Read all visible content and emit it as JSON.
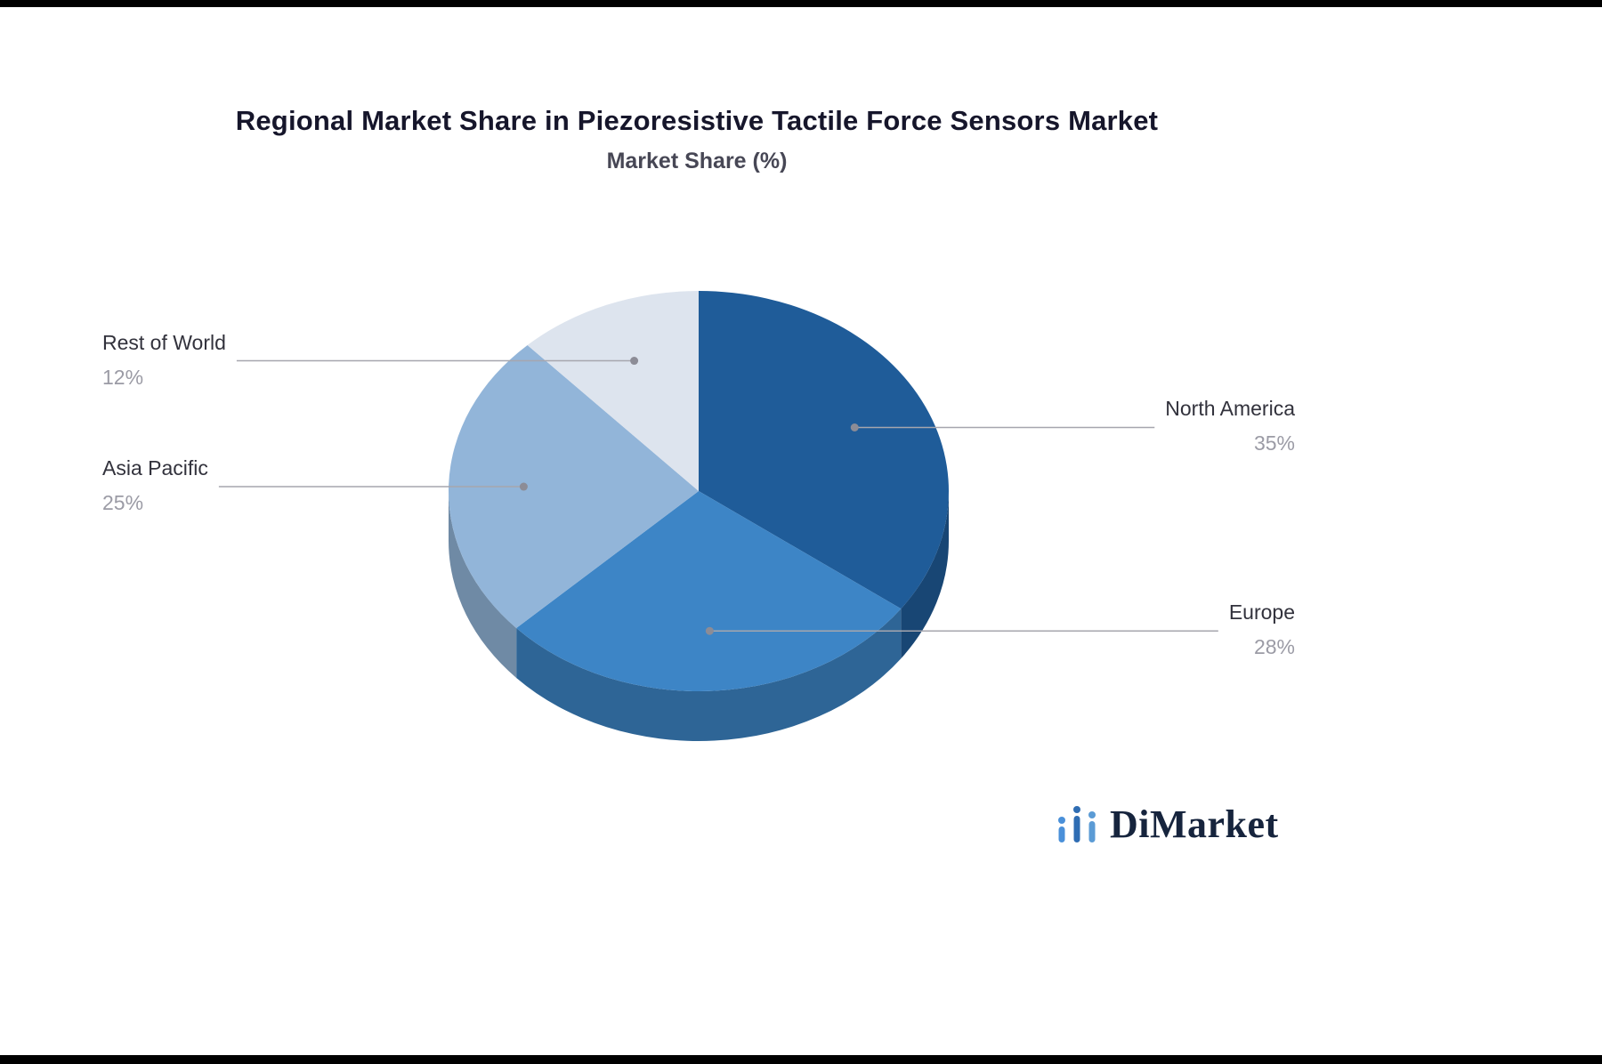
{
  "chart_data": {
    "type": "pie",
    "title": "Regional Market Share in Piezoresistive Tactile Force Sensors Market",
    "subtitle": "Market Share (%)",
    "start_angle_deg": -90,
    "direction": "clockwise",
    "legend_position": "none",
    "label_style": "callout-lines",
    "slices": [
      {
        "label": "North America",
        "value": 35,
        "pct_label": "35%",
        "color": "#1f5c99"
      },
      {
        "label": "Europe",
        "value": 28,
        "pct_label": "28%",
        "color": "#3d85c6"
      },
      {
        "label": "Asia Pacific",
        "value": 25,
        "pct_label": "25%",
        "color": "#92b5d9"
      },
      {
        "label": "Rest of World",
        "value": 12,
        "pct_label": "12%",
        "color": "#dde4ee"
      }
    ]
  },
  "branding": {
    "logo_text": "DiMarket"
  }
}
